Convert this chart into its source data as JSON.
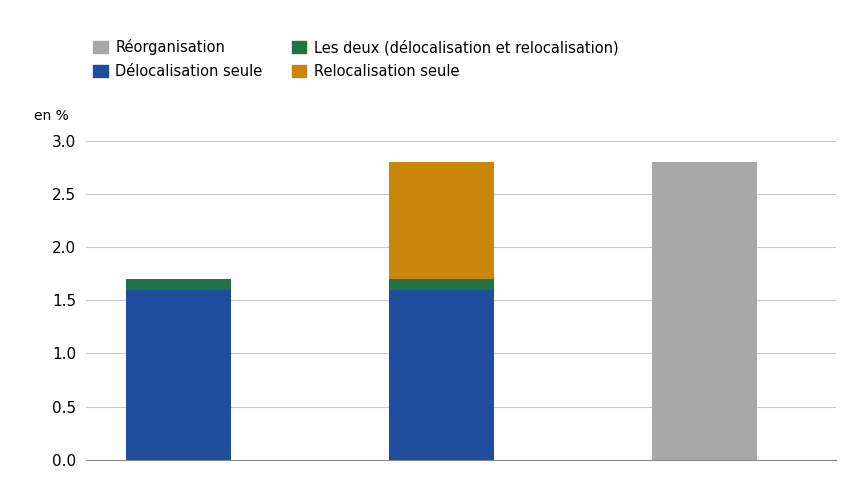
{
  "x_positions": [
    1,
    3,
    5
  ],
  "bar_width": 0.8,
  "series": [
    {
      "label": "Délocalisation seule",
      "color": "#1F4E9C",
      "values": [
        1.6,
        1.6,
        0.0
      ]
    },
    {
      "label": "Les deux (délocalisation et relocalisation)",
      "color": "#217346",
      "values": [
        0.1,
        0.1,
        0.0
      ]
    },
    {
      "label": "Relocalisation seule",
      "color": "#C8860A",
      "values": [
        0.0,
        1.1,
        0.0
      ]
    },
    {
      "label": "Réorganisation",
      "color": "#A8A8A8",
      "values": [
        0.0,
        0.0,
        2.8
      ]
    }
  ],
  "legend_row1": [
    3,
    0
  ],
  "legend_row2": [
    1,
    2
  ],
  "ylabel": "en %",
  "ylim": [
    0,
    3.05
  ],
  "yticks": [
    0.0,
    0.5,
    1.0,
    1.5,
    2.0,
    2.5,
    3.0
  ],
  "background_color": "#ffffff",
  "grid_color": "#c8c8c8"
}
